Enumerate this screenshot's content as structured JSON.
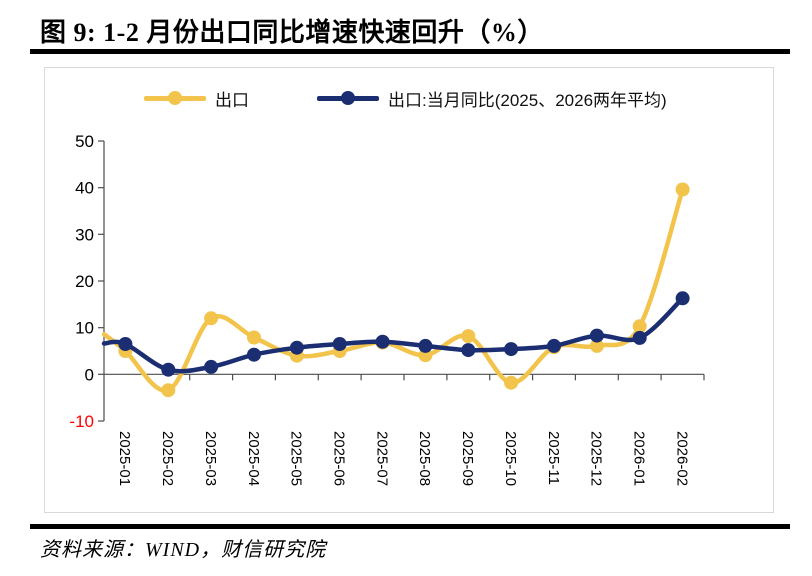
{
  "page": {
    "title": "图 9: 1-2 月份出口同比增速快速回升（%）",
    "source": "资料来源：WIND，财信研究院"
  },
  "chart_data": {
    "type": "line",
    "title": "图 9: 1-2 月份出口同比增速快速回升（%）",
    "categories": [
      "2025-01",
      "2025-02",
      "2025-03",
      "2025-04",
      "2025-05",
      "2025-06",
      "2025-07",
      "2025-08",
      "2025-09",
      "2025-10",
      "2025-11",
      "2025-12",
      "2026-01",
      "2026-02"
    ],
    "series": [
      {
        "name": "出口",
        "color": "#F3C44C",
        "values": [
          5.0,
          -3.4,
          12.0,
          7.9,
          4.0,
          5.0,
          6.8,
          4.1,
          8.2,
          -1.8,
          5.8,
          6.1,
          10.3,
          39.6
        ],
        "left_edge_value": 8.6
      },
      {
        "name": "出口:当月同比(2025、2026两年平均)",
        "color": "#1B2E72",
        "values": [
          6.5,
          1.0,
          1.6,
          4.2,
          5.7,
          6.5,
          7.0,
          6.1,
          5.2,
          5.4,
          6.1,
          8.3,
          7.8,
          16.3
        ],
        "left_edge_value": 6.6
      }
    ],
    "ylim": [
      -10,
      50
    ],
    "yticks": [
      50,
      40,
      30,
      20,
      10,
      0,
      -10
    ],
    "ytick_color": "#000000",
    "negative_ytick_color": "#FF0000",
    "axis_color": "#4d4d4d",
    "xtick_label_color": "#000000",
    "grid": false,
    "legend_position": "top",
    "smooth_lines": true
  }
}
